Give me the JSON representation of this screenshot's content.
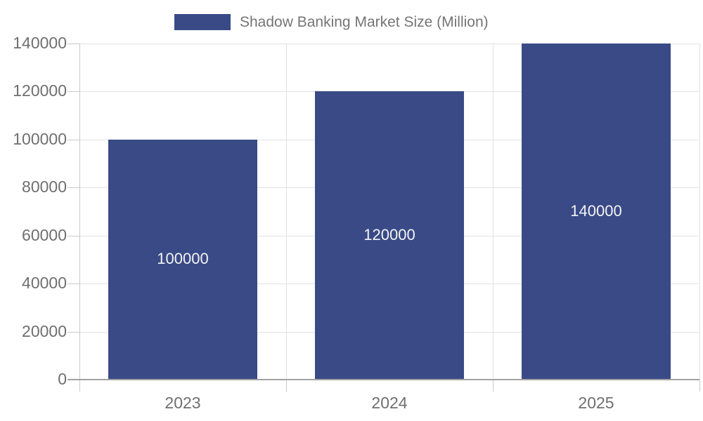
{
  "chart_data": {
    "type": "bar",
    "title": "Shadow Banking Market Size (Million)",
    "categories": [
      "2023",
      "2024",
      "2025"
    ],
    "series": [
      {
        "name": "Shadow Banking Market Size (Million)",
        "values": [
          100000,
          120000,
          140000
        ],
        "data_labels": [
          "100000",
          "120000",
          "140000"
        ]
      }
    ],
    "xlabel": "",
    "ylabel": "",
    "ylim": [
      0,
      140000
    ],
    "ytick_interval": 20000,
    "yticks": [
      0,
      20000,
      40000,
      60000,
      80000,
      100000,
      120000,
      140000
    ],
    "ytick_labels": [
      "0",
      "20000",
      "40000",
      "60000",
      "80000",
      "100000",
      "120000",
      "140000"
    ],
    "grid": true,
    "legend_position": "top",
    "data_labels_inside_bars": true
  },
  "legend": {
    "label": "Shadow Banking Market Size (Million)",
    "swatch_color": "#394A86"
  },
  "colors": {
    "bar_fill": "#394A86",
    "bar_label_text": "#F4F4F4",
    "axis_text": "#6F6F6F",
    "legend_text": "#757575",
    "gridline": "#E2E2E2",
    "axis_line": "#C9C9C9",
    "baseline": "#A2A2A2"
  }
}
